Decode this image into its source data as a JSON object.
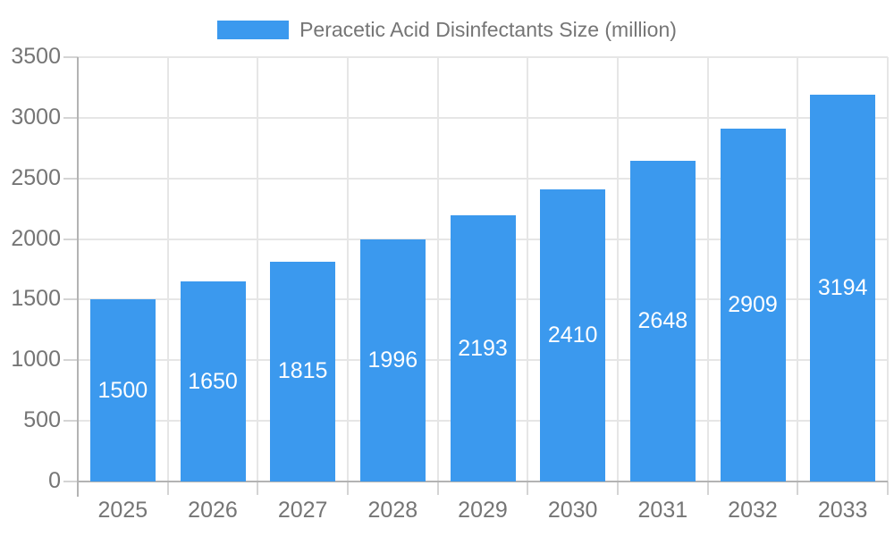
{
  "chart_data": {
    "type": "bar",
    "title": "Peracetic Acid Disinfectants Size (million)",
    "legend": [
      "Peracetic Acid Disinfectants Size (million)"
    ],
    "legend_position": "top",
    "categories": [
      "2025",
      "2026",
      "2027",
      "2028",
      "2029",
      "2030",
      "2031",
      "2032",
      "2033"
    ],
    "values": [
      1500,
      1650,
      1815,
      1996,
      2193,
      2410,
      2648,
      2909,
      3194
    ],
    "value_labels": [
      "1500",
      "1650",
      "1815",
      "1996",
      "2193",
      "2410",
      "2648",
      "2909",
      "3194"
    ],
    "xlabel": "",
    "ylabel": "",
    "ylim": [
      0,
      3500
    ],
    "yticks": [
      0,
      500,
      1000,
      1500,
      2000,
      2500,
      3000,
      3500
    ],
    "ytick_labels": [
      "0",
      "500",
      "1000",
      "1500",
      "2000",
      "2500",
      "3000",
      "3500"
    ],
    "grid": true,
    "colors": {
      "bar": "#3b99ee",
      "bar_value_text": "#ffffff",
      "axis_text": "#757575",
      "legend_text": "#757575",
      "gridline": "#e6e6e6",
      "axis_line": "#b3b3b3",
      "tick": "#d4d4d4",
      "background": "#ffffff"
    }
  }
}
